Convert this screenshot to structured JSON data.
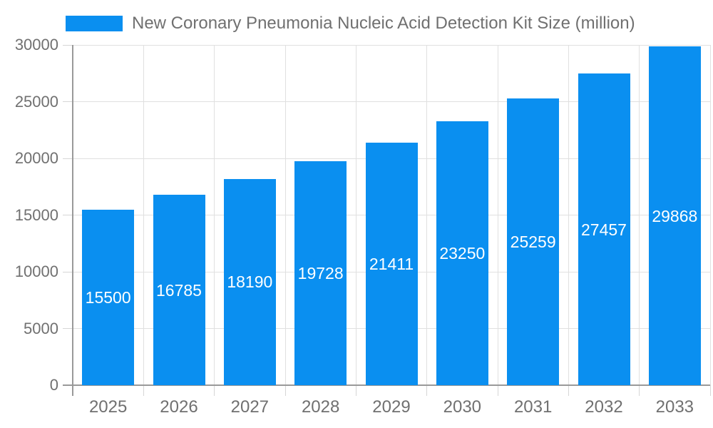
{
  "legend": {
    "label": "New Coronary Pneumonia Nucleic Acid Detection Kit Size (million)"
  },
  "colors": {
    "bar": "#0a8ff0",
    "grid": "#e0e0e0",
    "tick": "#d6d6d6",
    "axis": "#999999",
    "axis_text": "#707070",
    "value_label": "#ffffff",
    "background": "#ffffff"
  },
  "chart_data": {
    "type": "bar",
    "title": "",
    "series_name": "New Coronary Pneumonia Nucleic Acid Detection Kit Size (million)",
    "categories": [
      "2025",
      "2026",
      "2027",
      "2028",
      "2029",
      "2030",
      "2031",
      "2032",
      "2033"
    ],
    "values": [
      15500,
      16785,
      18190,
      19728,
      21411,
      23250,
      25259,
      27457,
      29868
    ],
    "xlabel": "",
    "ylabel": "",
    "ylim": [
      0,
      30000
    ],
    "yticks": [
      0,
      5000,
      10000,
      15000,
      20000,
      25000,
      30000
    ],
    "grid": true,
    "legend_position": "top-left",
    "value_label_position": "inside-center"
  }
}
